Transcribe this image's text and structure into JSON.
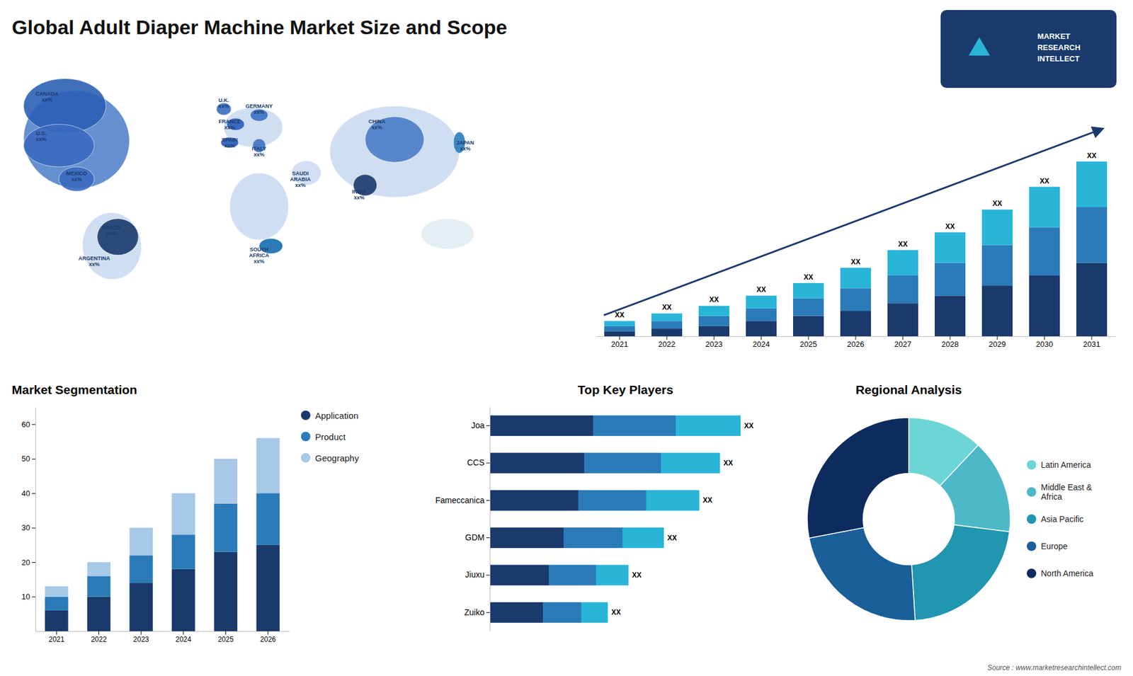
{
  "title": "Global  Adult Diaper Machine Market Size and Scope",
  "annotations": [
    "CANADA\nxx%",
    "U.S.\nxx%",
    "MEXICO\nxx%",
    "BRAZIL\nxx%",
    "ARGENTINA\nxx%",
    "U.K.\nxx%",
    "FRANCE\nxx%",
    "GERMANY\nxx%",
    "SPAIN\nxx%",
    "ITALY\nxx%",
    "SAUDI\nARABIA\nxx%",
    "SOUTH\nAFRICA\nxx%",
    "CHINA\nxx%",
    "INDIA\nxx%",
    "JAPAN\nxx%"
  ],
  "logo_text": "MARKET\nRESEARCH\nINTELLECT",
  "source": "Source : www.marketresearchintellect.com",
  "chart_data": [
    {
      "type": "bar",
      "stacked": true,
      "categories": [
        "2021",
        "2022",
        "2023",
        "2024",
        "2025",
        "2026",
        "2027",
        "2028",
        "2029",
        "2030",
        "2031"
      ],
      "series": [
        {
          "color": "#1a3a6b",
          "values": [
            2,
            3,
            4,
            6,
            8,
            10,
            13,
            16,
            20,
            24,
            29
          ]
        },
        {
          "color": "#2b7bb9",
          "values": [
            2,
            3,
            4,
            5,
            7,
            9,
            11,
            13,
            16,
            19,
            22
          ]
        },
        {
          "color": "#29b5d8",
          "values": [
            2,
            3,
            4,
            5,
            6,
            8,
            10,
            12,
            14,
            16,
            18
          ]
        }
      ],
      "ylim": [
        0,
        92
      ],
      "tick_labels": "x",
      "annotations": [
        "XX",
        "XX",
        "XX",
        "XX",
        "XX",
        "XX",
        "XX",
        "XX",
        "XX",
        "XX",
        "XX"
      ]
    },
    {
      "type": "bar",
      "stacked": true,
      "title": "Market Segmentation",
      "categories": [
        "2021",
        "2022",
        "2023",
        "2024",
        "2025",
        "2026"
      ],
      "series": [
        {
          "name": "Application",
          "color": "#1a3a6b",
          "values": [
            6,
            10,
            14,
            18,
            23,
            25
          ]
        },
        {
          "name": "Product",
          "color": "#2b7bb9",
          "values": [
            4,
            6,
            8,
            10,
            14,
            15
          ]
        },
        {
          "name": "Geography",
          "color": "#a8c8e8",
          "values": [
            3,
            4,
            8,
            12,
            13,
            16
          ]
        }
      ],
      "ylim": [
        0,
        65
      ],
      "yticks": [
        10,
        20,
        30,
        40,
        50,
        60
      ],
      "legend": "right"
    },
    {
      "type": "bar",
      "orientation": "horizontal",
      "stacked": true,
      "title": "Top Key Players",
      "categories": [
        "Joa",
        "CCS",
        "Fameccanica",
        "GDM",
        "Jiuxu",
        "Zuiko"
      ],
      "series": [
        {
          "color": "#1a3a6b",
          "values": [
            35,
            32,
            30,
            25,
            20,
            18
          ]
        },
        {
          "color": "#2b7bb9",
          "values": [
            28,
            26,
            23,
            20,
            16,
            13
          ]
        },
        {
          "color": "#29b5d8",
          "values": [
            22,
            20,
            18,
            14,
            11,
            9
          ]
        }
      ],
      "xlim": [
        0,
        100
      ],
      "tick_labels": "y",
      "annotations": [
        "XX",
        "XX",
        "XX",
        "XX",
        "XX",
        "XX"
      ]
    },
    {
      "type": "pie",
      "title": "Regional Analysis",
      "categories": [
        "Latin America",
        "Middle East &\nAfrica",
        "Asia Pacific",
        "Europe",
        "North America"
      ],
      "values": [
        12,
        15,
        22,
        23,
        28
      ],
      "colors": [
        "#6dd5d5",
        "#4db8c8",
        "#2196b0",
        "#1a5f99",
        "#0d2b5e"
      ],
      "legend": "right"
    }
  ]
}
